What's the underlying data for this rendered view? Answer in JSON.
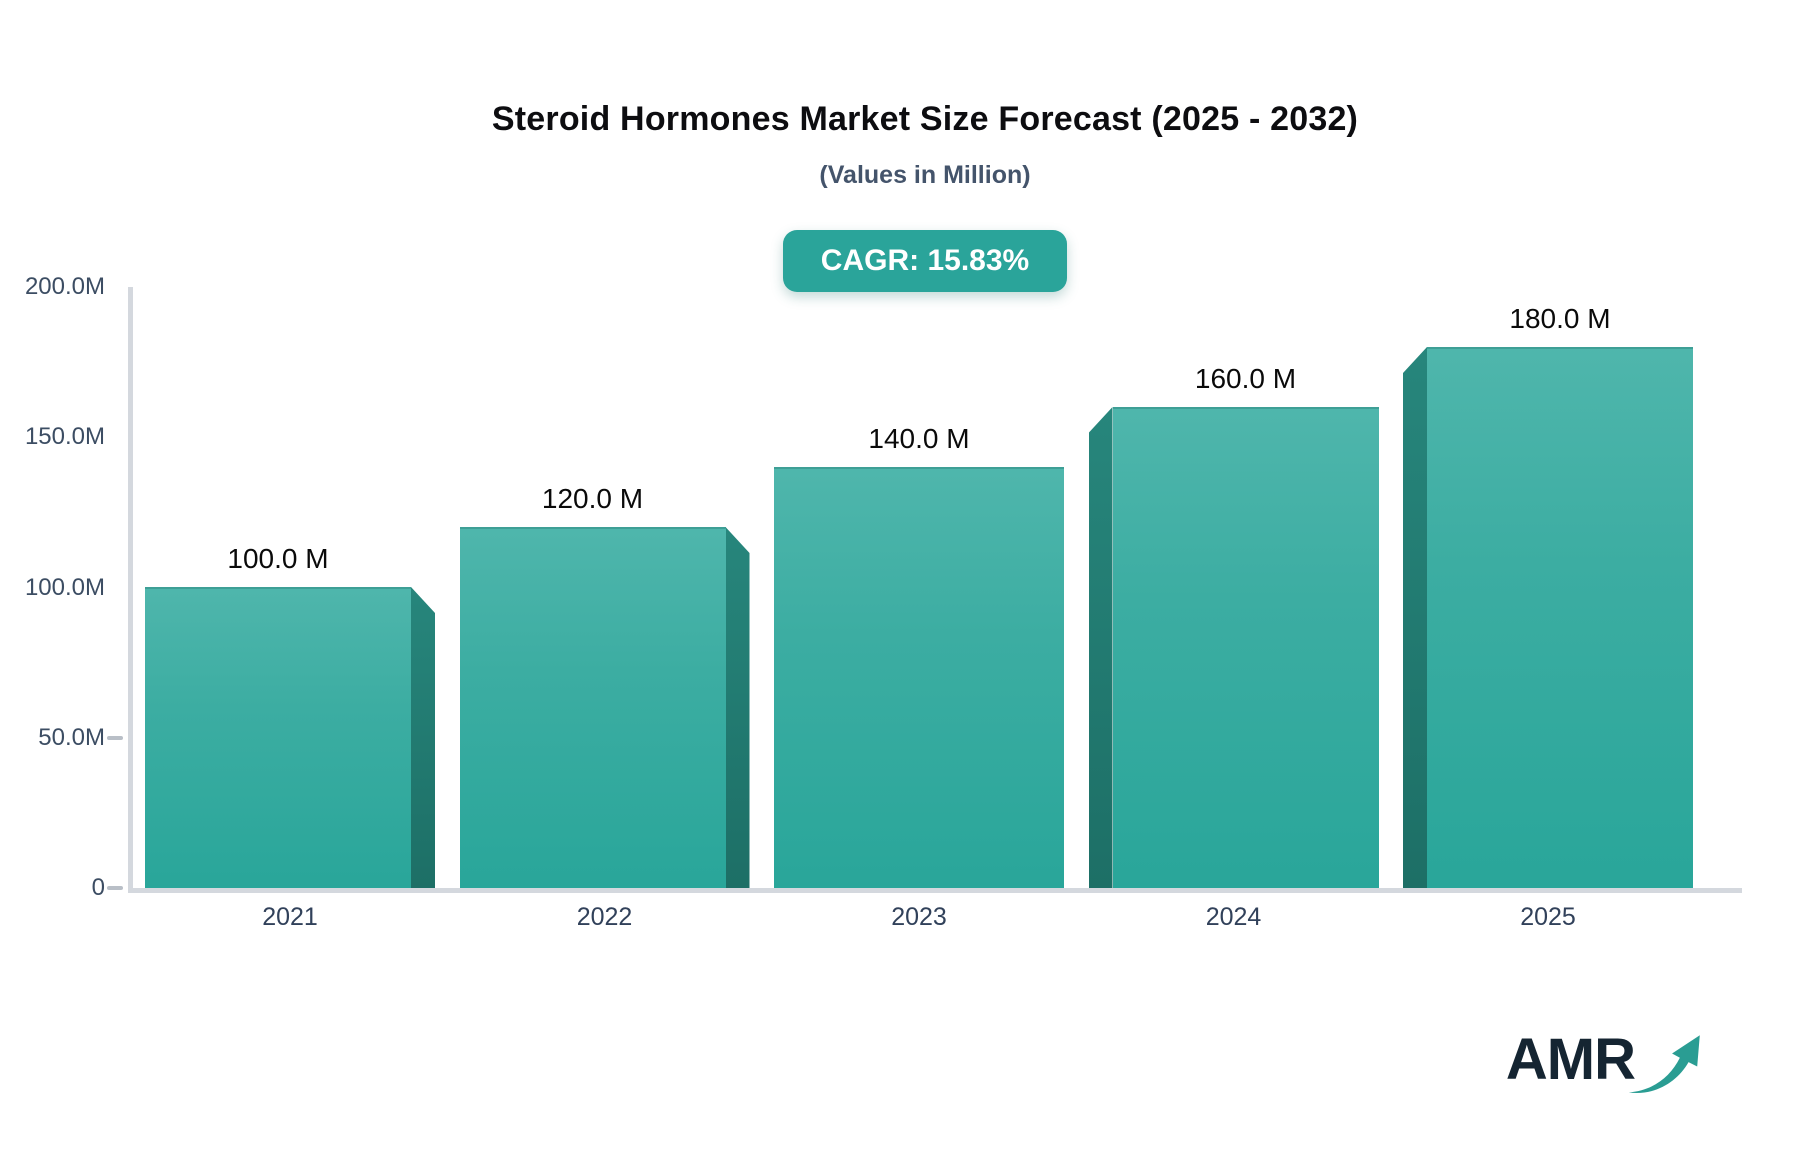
{
  "header": {
    "title": "Steroid Hormones Market Size Forecast (2025 - 2032)",
    "subtitle": "(Values in Million)",
    "cagr_label": "CAGR: 15.83%"
  },
  "logo": {
    "text": "AMR"
  },
  "colors": {
    "badge_teal": "#2aa49a",
    "bar_face_top": "#4fb6ac",
    "bar_face_bottom": "#29a69a",
    "bar_side_dark": "#1d6f66",
    "axis_line": "#d4d8de",
    "tick_text": "#3c4d63",
    "title_text": "#0d0d10",
    "subtitle_text": "#44546b",
    "logo_navy": "#152532",
    "logo_arrow_teal": "#2a9d93"
  },
  "chart_data": {
    "type": "bar",
    "title": "Steroid Hormones Market Size Forecast (2025 - 2032)",
    "subtitle": "(Values in Million)",
    "unit": "Million",
    "cagr": "15.83%",
    "categories": [
      "2021",
      "2022",
      "2023",
      "2024",
      "2025"
    ],
    "values": [
      100.0,
      120.0,
      140.0,
      160.0,
      180.0
    ],
    "value_labels": [
      "100.0 M",
      "120.0 M",
      "140.0 M",
      "160.0 M",
      "180.0 M"
    ],
    "ylim": [
      0,
      200
    ],
    "y_ticks": [
      {
        "value": 200,
        "label": "200.0M"
      },
      {
        "value": 150,
        "label": "150.0M"
      },
      {
        "value": 100,
        "label": "100.0M"
      },
      {
        "value": 50,
        "label": "50.0M"
      },
      {
        "value": 0,
        "label": "0"
      }
    ],
    "grid": false,
    "legend_position": "none",
    "style": "3d-teal-gradient-bars"
  }
}
